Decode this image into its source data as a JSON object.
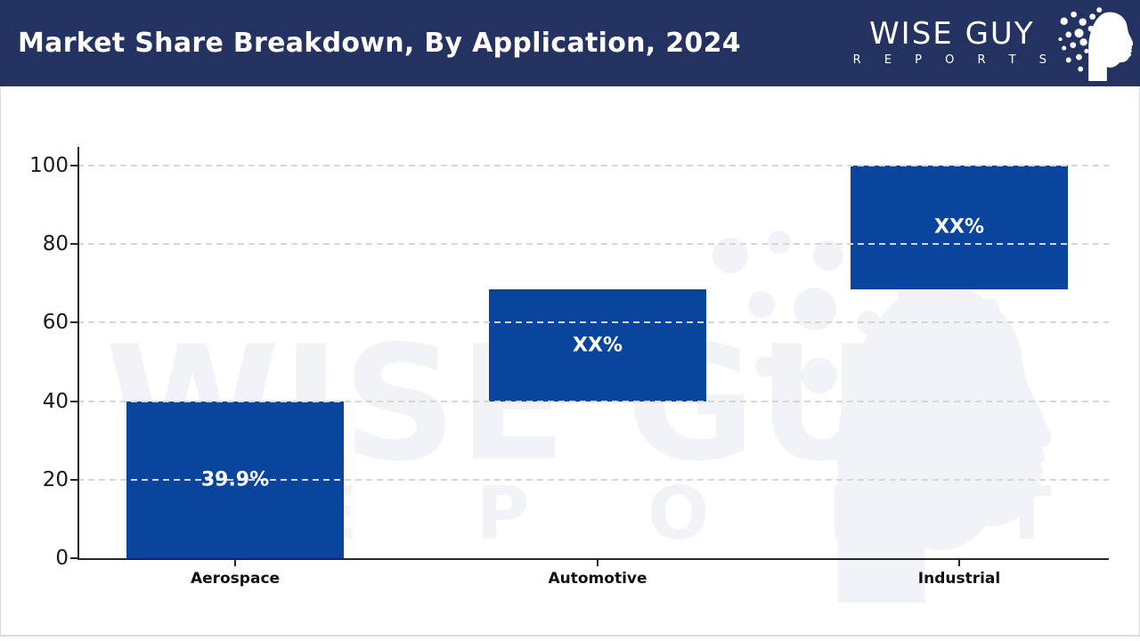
{
  "header": {
    "title": "Market Share Breakdown, By Application, 2024",
    "logo": {
      "primary": "WISE GUY",
      "secondary": "R E P O R T S"
    }
  },
  "watermark": {
    "primary": "WISE GUY",
    "secondary": "R E P O R T S"
  },
  "chart_data": {
    "type": "bar",
    "subtype": "waterfall-floating-bars",
    "title": "Market Share Breakdown, By Application, 2024",
    "categories": [
      "Aerospace",
      "Automotive",
      "Industrial"
    ],
    "series": [
      {
        "name": "Market Share",
        "segments": [
          {
            "category": "Aerospace",
            "start": 0,
            "end": 39.9,
            "label": "39.9%"
          },
          {
            "category": "Automotive",
            "start": 39.9,
            "end": 68.5,
            "label": "XX%"
          },
          {
            "category": "Industrial",
            "start": 68.5,
            "end": 100,
            "label": "XX%"
          }
        ]
      }
    ],
    "xlabel": "",
    "ylabel": "",
    "yticks": [
      0,
      20,
      40,
      60,
      80,
      100
    ],
    "ylim": [
      0,
      105
    ],
    "grid": "dashed-horizontal",
    "legend": "none",
    "bar_color": "#09459c",
    "bar_label_color": "#ffffff"
  },
  "colors": {
    "header_bg": "#233260",
    "bar": "#09459c",
    "gridline": "#d7d7d7",
    "axis": "#262626",
    "watermark_text": "#f2f3f6"
  }
}
